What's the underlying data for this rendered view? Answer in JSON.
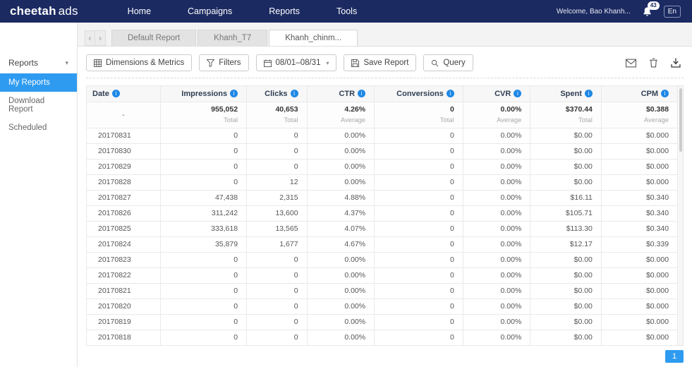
{
  "colors": {
    "navbar_bg": "#1b2a61",
    "accent_blue": "#2e9bf0",
    "info_blue": "#1e88e5"
  },
  "icons": {
    "prev": "‹",
    "next": "›",
    "chevron_down": "▾",
    "caret_down": "▾"
  },
  "navbar": {
    "brand_bold": "cheetah",
    "brand_light": "ads",
    "items": [
      "Home",
      "Campaigns",
      "Reports",
      "Tools"
    ],
    "welcome": "Welcome,",
    "username": "Bao Khanh...",
    "notification_count": "43",
    "language": "En"
  },
  "sidebar": {
    "group_label": "Reports",
    "items": [
      "My Reports",
      "Download Report",
      "Scheduled"
    ]
  },
  "tabs": [
    "Default Report",
    "Khanh_T7",
    "Khanh_chinm..."
  ],
  "toolbar": {
    "dimensions_metrics": "Dimensions & Metrics",
    "filters": "Filters",
    "date_range": "08/01–08/31",
    "save_report": "Save Report",
    "query": "Query"
  },
  "table": {
    "columns": [
      "Date",
      "Impressions",
      "Clicks",
      "CTR",
      "Conversions",
      "CVR",
      "Spent",
      "CPM"
    ],
    "summary": {
      "date": "-",
      "values": [
        "955,052",
        "40,653",
        "4.26%",
        "0",
        "0.00%",
        "$370.44",
        "$0.388"
      ],
      "sublabels": [
        "Total",
        "Total",
        "Average",
        "Total",
        "Average",
        "Total",
        "Average"
      ]
    },
    "rows": [
      {
        "date": "20170831",
        "values": [
          "0",
          "0",
          "0.00%",
          "0",
          "0.00%",
          "$0.00",
          "$0.000"
        ]
      },
      {
        "date": "20170830",
        "values": [
          "0",
          "0",
          "0.00%",
          "0",
          "0.00%",
          "$0.00",
          "$0.000"
        ]
      },
      {
        "date": "20170829",
        "values": [
          "0",
          "0",
          "0.00%",
          "0",
          "0.00%",
          "$0.00",
          "$0.000"
        ]
      },
      {
        "date": "20170828",
        "values": [
          "0",
          "12",
          "0.00%",
          "0",
          "0.00%",
          "$0.00",
          "$0.000"
        ]
      },
      {
        "date": "20170827",
        "values": [
          "47,438",
          "2,315",
          "4.88%",
          "0",
          "0.00%",
          "$16.11",
          "$0.340"
        ]
      },
      {
        "date": "20170826",
        "values": [
          "311,242",
          "13,600",
          "4.37%",
          "0",
          "0.00%",
          "$105.71",
          "$0.340"
        ]
      },
      {
        "date": "20170825",
        "values": [
          "333,618",
          "13,565",
          "4.07%",
          "0",
          "0.00%",
          "$113.30",
          "$0.340"
        ]
      },
      {
        "date": "20170824",
        "values": [
          "35,879",
          "1,677",
          "4.67%",
          "0",
          "0.00%",
          "$12.17",
          "$0.339"
        ]
      },
      {
        "date": "20170823",
        "values": [
          "0",
          "0",
          "0.00%",
          "0",
          "0.00%",
          "$0.00",
          "$0.000"
        ]
      },
      {
        "date": "20170822",
        "values": [
          "0",
          "0",
          "0.00%",
          "0",
          "0.00%",
          "$0.00",
          "$0.000"
        ]
      },
      {
        "date": "20170821",
        "values": [
          "0",
          "0",
          "0.00%",
          "0",
          "0.00%",
          "$0.00",
          "$0.000"
        ]
      },
      {
        "date": "20170820",
        "values": [
          "0",
          "0",
          "0.00%",
          "0",
          "0.00%",
          "$0.00",
          "$0.000"
        ]
      },
      {
        "date": "20170819",
        "values": [
          "0",
          "0",
          "0.00%",
          "0",
          "0.00%",
          "$0.00",
          "$0.000"
        ]
      },
      {
        "date": "20170818",
        "values": [
          "0",
          "0",
          "0.00%",
          "0",
          "0.00%",
          "$0.00",
          "$0.000"
        ]
      }
    ]
  },
  "pagination": {
    "current_page": "1"
  }
}
